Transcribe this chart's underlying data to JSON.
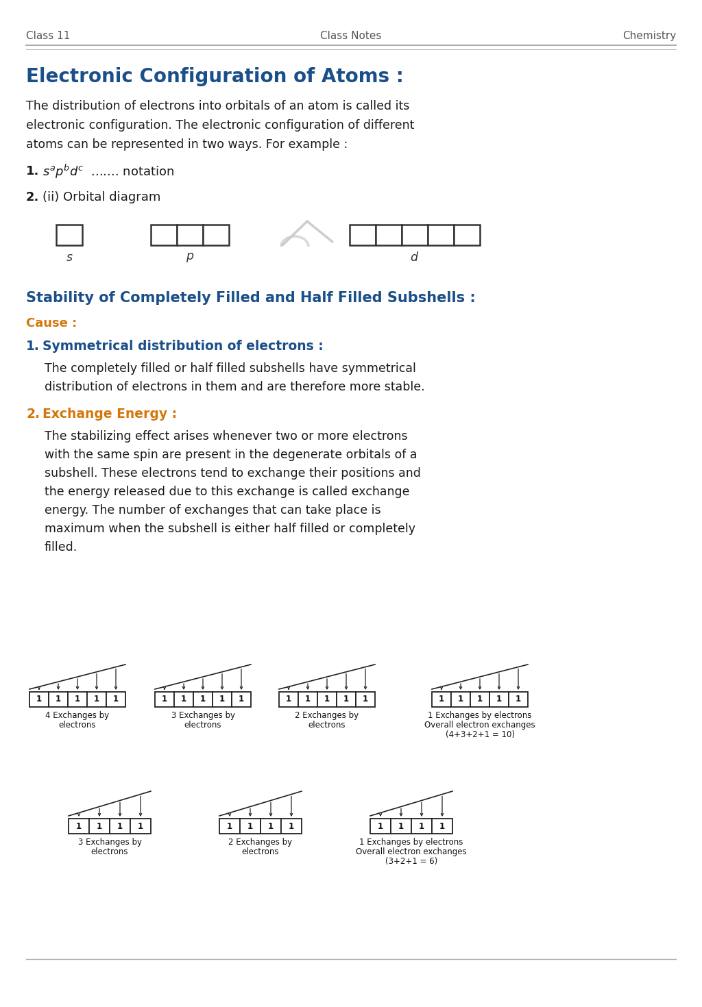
{
  "header_left": "Class 11",
  "header_center": "Class Notes",
  "header_right": "Chemistry",
  "main_title": "Electronic Configuration of Atoms :",
  "intro_text": "The distribution of electrons into orbitals of an atom is called its\nelectronic configuration. The electronic configuration of different\natoms can be represented in two ways. For example :",
  "point1_num": "1.",
  "point1_math": "$s^a$$p^b$$d^c$",
  "point1_rest": "  ....... notation",
  "point2_num": "2.",
  "point2_text": "(ii) Orbital diagram",
  "stability_title": "Stability of Completely Filled and Half Filled Subshells :",
  "cause_label": "Cause :",
  "sym_num": "1.",
  "sym_title": "Symmetrical distribution of electrons :",
  "sym_text": "The completely filled or half filled subshells have symmetrical\ndistribution of electrons in them and are therefore more stable.",
  "exch_num": "2.",
  "exch_title": "Exchange Energy :",
  "exchange_text": "The stabilizing effect arises whenever two or more electrons\nwith the same spin are present in the degenerate orbitals of a\nsubshell. These electrons tend to exchange their positions and\nthe energy released due to this exchange is called exchange\nenergy. The number of exchanges that can take place is\nmaximum when the subshell is either half filled or completely\nfilled.",
  "bg_color": "#ffffff",
  "title_color": "#1b4f8a",
  "header_color": "#555555",
  "body_color": "#1a1a1a",
  "orange_color": "#d4760a",
  "line_color": "#aaaaaa",
  "box_color": "#333333"
}
